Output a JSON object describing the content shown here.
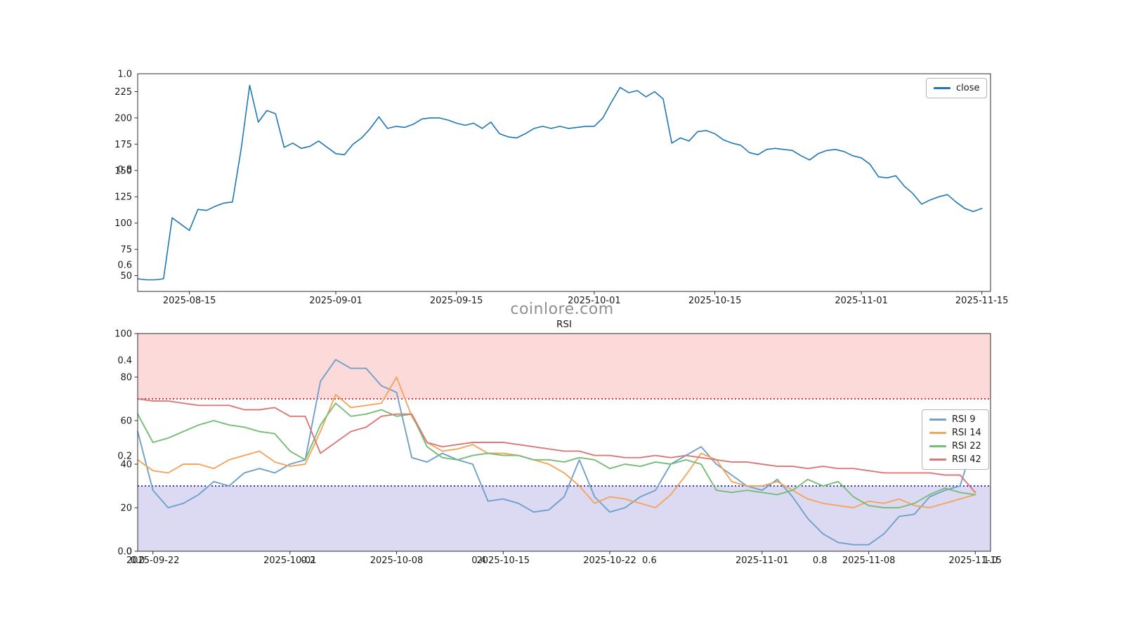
{
  "watermark": "coinlore.com",
  "stray_axis": {
    "y_labels": [
      "0.0",
      "0.2",
      "0.4",
      "0.6",
      "0.8",
      "1.0"
    ],
    "x_labels": [
      "0.0",
      "0.2",
      "0.4",
      "0.6",
      "0.8",
      "1.0"
    ]
  },
  "chart_data": [
    {
      "type": "line",
      "title": "",
      "frequency": "daily",
      "x_start": "2025-08-09",
      "x_end": "2025-11-16",
      "ylim": [
        35,
        242
      ],
      "y_ticks": [
        50,
        75,
        100,
        125,
        150,
        175,
        200,
        225
      ],
      "x_ticks": [
        "2025-08-15",
        "2025-09-01",
        "2025-09-15",
        "2025-10-01",
        "2025-10-15",
        "2025-11-01",
        "2025-11-15"
      ],
      "legend_position": "top-right",
      "series": [
        {
          "name": "close",
          "color": "#1f77b4",
          "start_date": "2025-08-09",
          "values": [
            47,
            46,
            46,
            47,
            105,
            99,
            93,
            113,
            112,
            116,
            119,
            120,
            170,
            231,
            196,
            207,
            204,
            172,
            176,
            171,
            173,
            178,
            172,
            166,
            165,
            175,
            181,
            190,
            201,
            190,
            192,
            191,
            194,
            199,
            200,
            200,
            198,
            195,
            193,
            195,
            190,
            196,
            185,
            182,
            181,
            185,
            190,
            192,
            190,
            192,
            190,
            191,
            192,
            192,
            200,
            215,
            229,
            224,
            226,
            220,
            225,
            218,
            176,
            181,
            178,
            187,
            188,
            185,
            179,
            176,
            174,
            167,
            165,
            170,
            171,
            170,
            169,
            164,
            160,
            166,
            169,
            170,
            168,
            164,
            162,
            156,
            144,
            143,
            145,
            135,
            128,
            118,
            122,
            125,
            127,
            120,
            114,
            111,
            114
          ]
        }
      ]
    },
    {
      "type": "line",
      "title": "RSI",
      "frequency": "daily",
      "x_start": "2025-09-21",
      "x_end": "2025-11-16",
      "ylim": [
        0,
        100
      ],
      "y_ticks": [
        0,
        20,
        40,
        60,
        80,
        100
      ],
      "x_ticks": [
        "2025-09-22",
        "2025-10-01",
        "2025-10-08",
        "2025-10-15",
        "2025-10-22",
        "2025-11-01",
        "2025-11-08",
        "2025-11-15"
      ],
      "legend_position": "right",
      "bands": [
        {
          "from": 70,
          "to": 100,
          "color": "#fcdada",
          "meaning": "overbought"
        },
        {
          "from": 0,
          "to": 30,
          "color": "#dcdaf3",
          "meaning": "oversold"
        }
      ],
      "hlines": [
        {
          "y": 70,
          "color": "#cc0000",
          "style": "dotted"
        },
        {
          "y": 30,
          "color": "#00008b",
          "style": "dotted"
        }
      ],
      "series": [
        {
          "name": "RSI 9",
          "color": "#70a1c9",
          "start_date": "2025-09-21",
          "values": [
            55,
            28,
            20,
            22,
            26,
            32,
            30,
            36,
            38,
            36,
            40,
            42,
            78,
            88,
            84,
            84,
            76,
            73,
            43,
            41,
            45,
            42,
            40,
            23,
            24,
            22,
            18,
            19,
            25,
            42,
            25,
            18,
            20,
            25,
            28,
            40,
            44,
            48,
            40,
            35,
            30,
            28,
            33,
            25,
            15,
            8,
            4,
            3,
            3,
            8,
            16,
            17,
            25,
            28,
            30,
            52
          ]
        },
        {
          "name": "RSI 14",
          "color": "#f4a55e",
          "start_date": "2025-09-21",
          "values": [
            42,
            37,
            36,
            40,
            40,
            38,
            42,
            44,
            46,
            41,
            39,
            40,
            55,
            72,
            66,
            67,
            68,
            80,
            62,
            50,
            46,
            47,
            49,
            45,
            45,
            44,
            42,
            40,
            36,
            30,
            22,
            25,
            24,
            22,
            20,
            26,
            35,
            45,
            42,
            32,
            30,
            30,
            32,
            28,
            24,
            22,
            21,
            20,
            23,
            22,
            24,
            21,
            20,
            22,
            24,
            26
          ]
        },
        {
          "name": "RSI 22",
          "color": "#77bd77",
          "start_date": "2025-09-21",
          "values": [
            63,
            50,
            52,
            55,
            58,
            60,
            58,
            57,
            55,
            54,
            46,
            42,
            58,
            68,
            62,
            63,
            65,
            62,
            63,
            48,
            43,
            42,
            44,
            45,
            44,
            44,
            42,
            42,
            41,
            43,
            42,
            38,
            40,
            39,
            41,
            40,
            42,
            40,
            28,
            27,
            28,
            27,
            26,
            28,
            33,
            30,
            32,
            25,
            21,
            20,
            20,
            22,
            26,
            29,
            27,
            26
          ]
        },
        {
          "name": "RSI 42",
          "color": "#d97979",
          "start_date": "2025-09-21",
          "values": [
            70,
            69,
            69,
            68,
            67,
            67,
            67,
            65,
            65,
            66,
            62,
            62,
            45,
            50,
            55,
            57,
            62,
            63,
            63,
            50,
            48,
            49,
            50,
            50,
            50,
            49,
            48,
            47,
            46,
            46,
            44,
            44,
            43,
            43,
            44,
            43,
            44,
            43,
            42,
            41,
            41,
            40,
            39,
            39,
            38,
            39,
            38,
            38,
            37,
            36,
            36,
            36,
            36,
            35,
            35,
            27
          ]
        }
      ]
    }
  ]
}
